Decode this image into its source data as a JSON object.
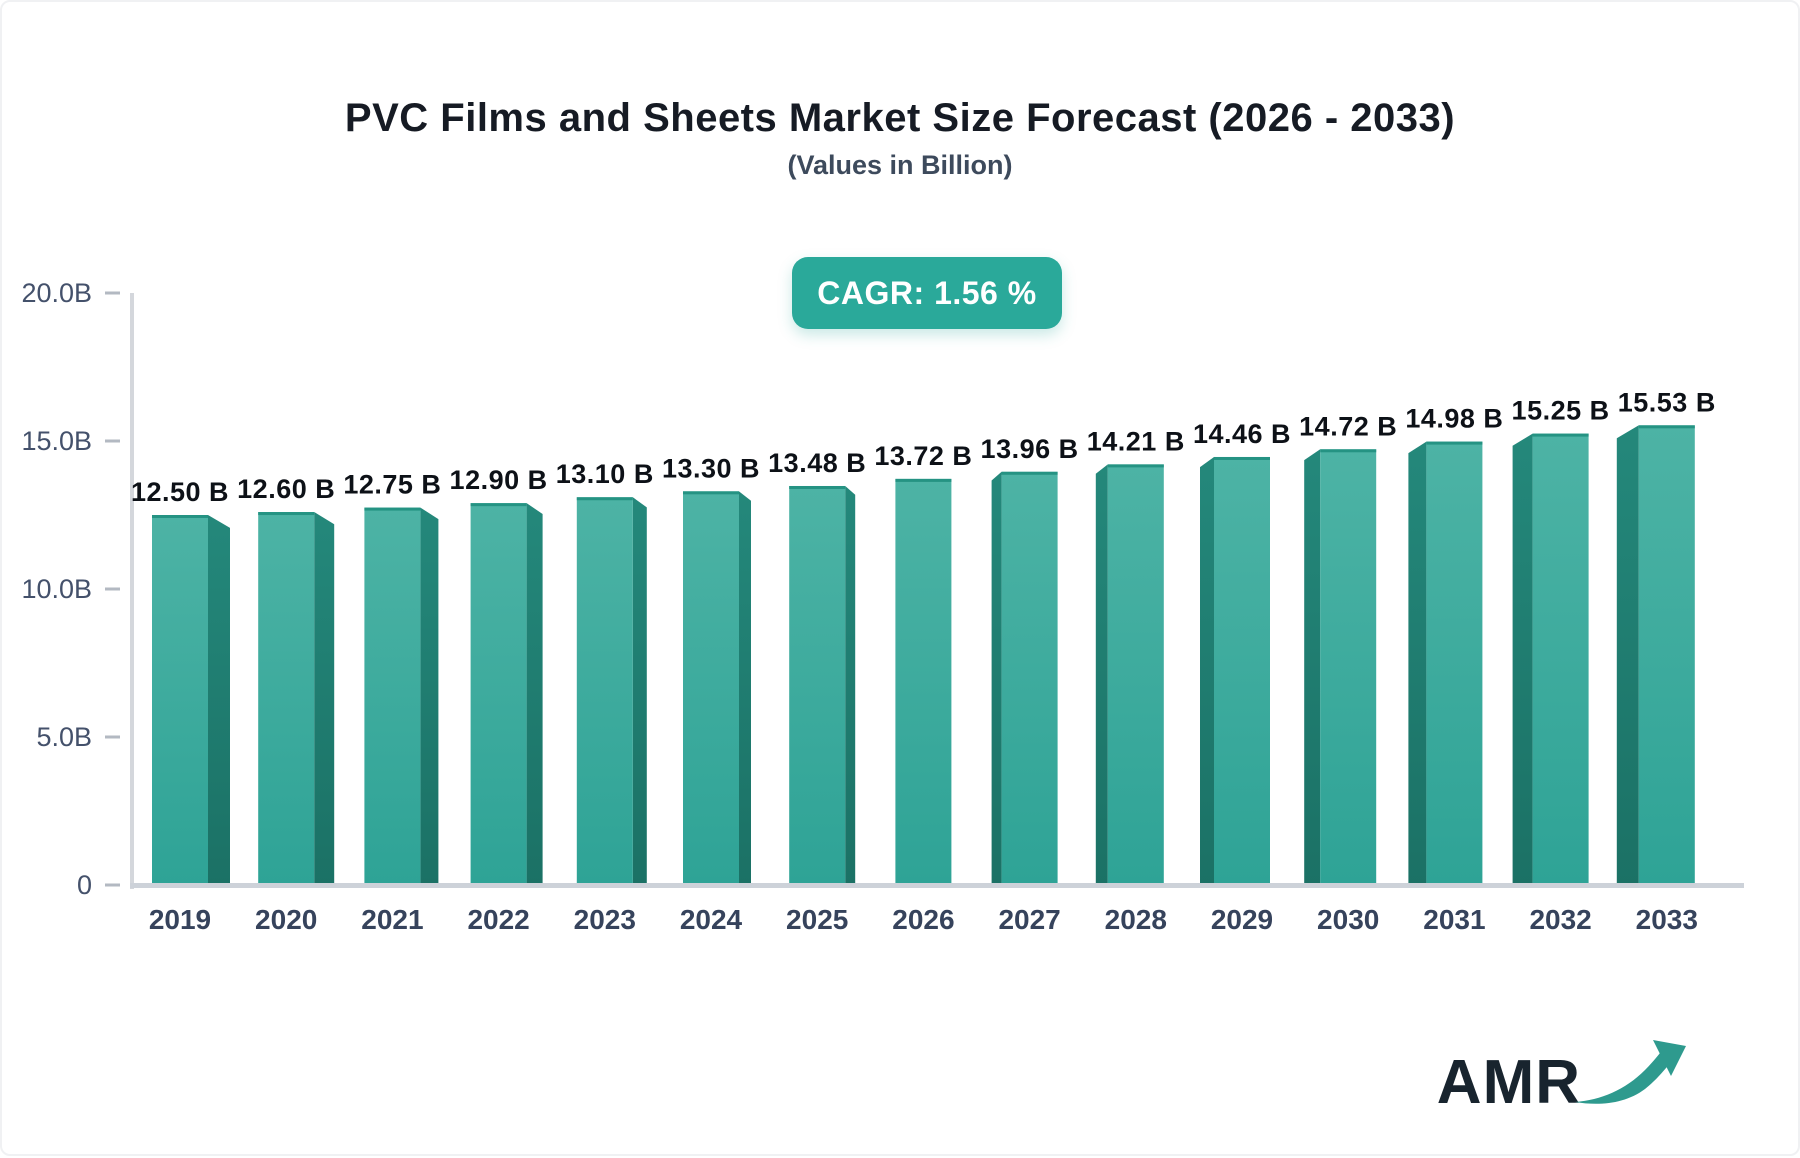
{
  "header": {
    "title": "PVC Films and Sheets Market Size Forecast (2026 - 2033)",
    "subtitle": "(Values in Billion)"
  },
  "badge": {
    "label": "CAGR: 1.56 %"
  },
  "chart_data": {
    "type": "bar",
    "title": "PVC Films and Sheets Market Size Forecast (2026 - 2033)",
    "subtitle": "(Values in Billion)",
    "unit": "Billion",
    "categories": [
      "2019",
      "2020",
      "2021",
      "2022",
      "2023",
      "2024",
      "2025",
      "2026",
      "2027",
      "2028",
      "2029",
      "2030",
      "2031",
      "2032",
      "2033"
    ],
    "values": [
      12.5,
      12.6,
      12.75,
      12.9,
      13.1,
      13.3,
      13.48,
      13.72,
      13.96,
      14.21,
      14.46,
      14.72,
      14.98,
      15.25,
      15.53
    ],
    "value_labels": [
      "12.50 B",
      "12.60 B",
      "12.75 B",
      "12.90 B",
      "13.10 B",
      "13.30 B",
      "13.48 B",
      "13.72 B",
      "13.96 B",
      "14.21 B",
      "14.46 B",
      "14.72 B",
      "14.98 B",
      "15.25 B",
      "15.53 B"
    ],
    "yticks": [
      {
        "value": 0,
        "label": "0"
      },
      {
        "value": 5,
        "label": "5.0B"
      },
      {
        "value": 10,
        "label": "10.0B"
      },
      {
        "value": 15,
        "label": "15.0B"
      },
      {
        "value": 20,
        "label": "20.0B"
      }
    ],
    "ylim": [
      0,
      20
    ],
    "grid": false,
    "legend": "none",
    "colors": {
      "bar_front_top": "#4db3a5",
      "bar_front_bottom": "#2ea396",
      "bar_top_edge": "#259383",
      "bar_side_top": "#24887b",
      "bar_side_bottom": "#1b7165",
      "axis_line": "#d4d7dc",
      "baseline": "#cdd2d9",
      "tick_dash": "#b3b9c2",
      "tick_label": "#44516b",
      "year_label": "#36435c",
      "value_label": "#0d1117",
      "accent": "#2aa99a"
    }
  },
  "logo": {
    "text": "AMR"
  }
}
